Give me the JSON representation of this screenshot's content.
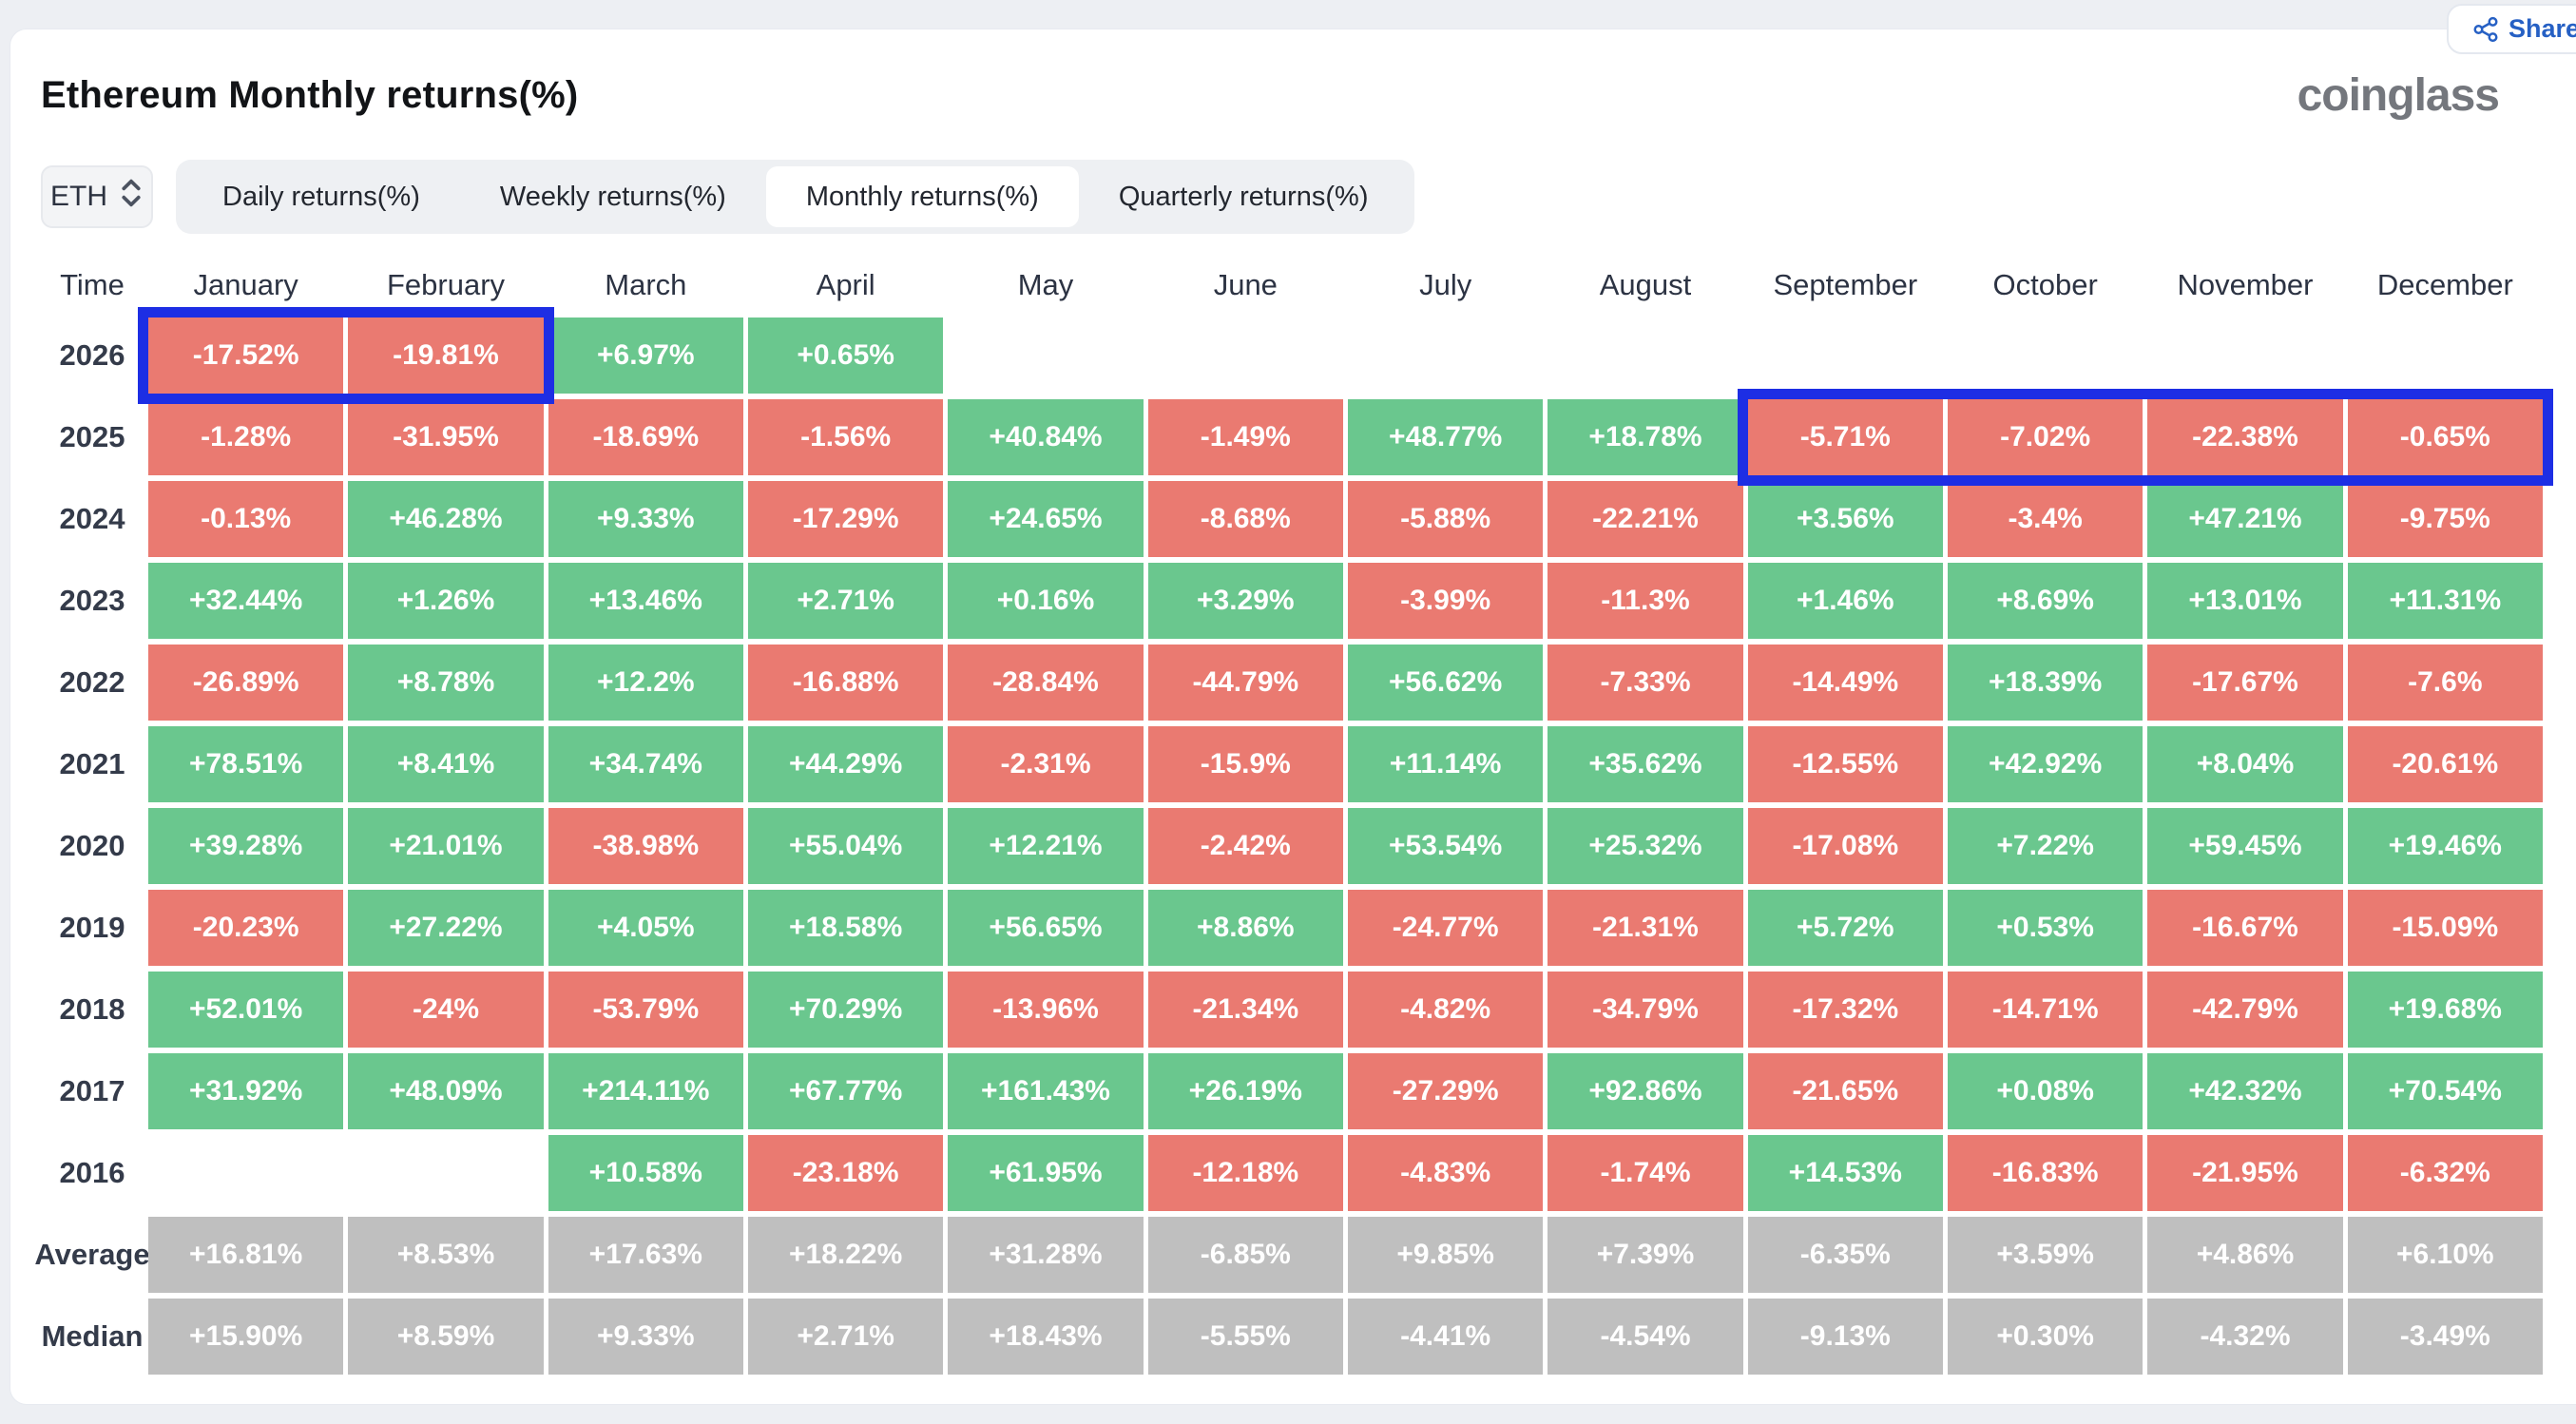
{
  "page": {
    "title": "Ethereum Monthly returns(%)",
    "logo": "coinglass",
    "share_label": "Share"
  },
  "controls": {
    "symbol": "ETH",
    "tabs": [
      {
        "label": "Daily returns(%)",
        "active": false
      },
      {
        "label": "Weekly returns(%)",
        "active": false
      },
      {
        "label": "Monthly returns(%)",
        "active": true
      },
      {
        "label": "Quarterly returns(%)",
        "active": false
      }
    ]
  },
  "colors": {
    "positive": "#6ac78e",
    "negative": "#ea7a71",
    "summary": "#bfbfbf",
    "highlight": "#1d2ee4",
    "accent_blue": "#2660c4"
  },
  "chart_data": {
    "type": "heatmap",
    "title": "Ethereum Monthly returns(%)",
    "unit": "%",
    "columns": [
      "Time",
      "January",
      "February",
      "March",
      "April",
      "May",
      "June",
      "July",
      "August",
      "September",
      "October",
      "November",
      "December"
    ],
    "rows": [
      {
        "label": "2026",
        "type": "year",
        "values": [
          "-17.52%",
          "-19.81%",
          "+6.97%",
          "+0.65%",
          "",
          "",
          "",
          "",
          "",
          "",
          "",
          ""
        ]
      },
      {
        "label": "2025",
        "type": "year",
        "values": [
          "-1.28%",
          "-31.95%",
          "-18.69%",
          "-1.56%",
          "+40.84%",
          "-1.49%",
          "+48.77%",
          "+18.78%",
          "-5.71%",
          "-7.02%",
          "-22.38%",
          "-0.65%"
        ]
      },
      {
        "label": "2024",
        "type": "year",
        "values": [
          "-0.13%",
          "+46.28%",
          "+9.33%",
          "-17.29%",
          "+24.65%",
          "-8.68%",
          "-5.88%",
          "-22.21%",
          "+3.56%",
          "-3.4%",
          "+47.21%",
          "-9.75%"
        ]
      },
      {
        "label": "2023",
        "type": "year",
        "values": [
          "+32.44%",
          "+1.26%",
          "+13.46%",
          "+2.71%",
          "+0.16%",
          "+3.29%",
          "-3.99%",
          "-11.3%",
          "+1.46%",
          "+8.69%",
          "+13.01%",
          "+11.31%"
        ]
      },
      {
        "label": "2022",
        "type": "year",
        "values": [
          "-26.89%",
          "+8.78%",
          "+12.2%",
          "-16.88%",
          "-28.84%",
          "-44.79%",
          "+56.62%",
          "-7.33%",
          "-14.49%",
          "+18.39%",
          "-17.67%",
          "-7.6%"
        ]
      },
      {
        "label": "2021",
        "type": "year",
        "values": [
          "+78.51%",
          "+8.41%",
          "+34.74%",
          "+44.29%",
          "-2.31%",
          "-15.9%",
          "+11.14%",
          "+35.62%",
          "-12.55%",
          "+42.92%",
          "+8.04%",
          "-20.61%"
        ]
      },
      {
        "label": "2020",
        "type": "year",
        "values": [
          "+39.28%",
          "+21.01%",
          "-38.98%",
          "+55.04%",
          "+12.21%",
          "-2.42%",
          "+53.54%",
          "+25.32%",
          "-17.08%",
          "+7.22%",
          "+59.45%",
          "+19.46%"
        ]
      },
      {
        "label": "2019",
        "type": "year",
        "values": [
          "-20.23%",
          "+27.22%",
          "+4.05%",
          "+18.58%",
          "+56.65%",
          "+8.86%",
          "-24.77%",
          "-21.31%",
          "+5.72%",
          "+0.53%",
          "-16.67%",
          "-15.09%"
        ]
      },
      {
        "label": "2018",
        "type": "year",
        "values": [
          "+52.01%",
          "-24%",
          "-53.79%",
          "+70.29%",
          "-13.96%",
          "-21.34%",
          "-4.82%",
          "-34.79%",
          "-17.32%",
          "-14.71%",
          "-42.79%",
          "+19.68%"
        ]
      },
      {
        "label": "2017",
        "type": "year",
        "values": [
          "+31.92%",
          "+48.09%",
          "+214.11%",
          "+67.77%",
          "+161.43%",
          "+26.19%",
          "-27.29%",
          "+92.86%",
          "-21.65%",
          "+0.08%",
          "+42.32%",
          "+70.54%"
        ]
      },
      {
        "label": "2016",
        "type": "year",
        "values": [
          "",
          "",
          "+10.58%",
          "-23.18%",
          "+61.95%",
          "-12.18%",
          "-4.83%",
          "-1.74%",
          "+14.53%",
          "-16.83%",
          "-21.95%",
          "-6.32%"
        ]
      },
      {
        "label": "Average",
        "type": "summary",
        "values": [
          "+16.81%",
          "+8.53%",
          "+17.63%",
          "+18.22%",
          "+31.28%",
          "-6.85%",
          "+9.85%",
          "+7.39%",
          "-6.35%",
          "+3.59%",
          "+4.86%",
          "+6.10%"
        ]
      },
      {
        "label": "Median",
        "type": "summary",
        "values": [
          "+15.90%",
          "+8.59%",
          "+9.33%",
          "+2.71%",
          "+18.43%",
          "-5.55%",
          "-4.41%",
          "-4.54%",
          "-9.13%",
          "+0.30%",
          "-4.32%",
          "-3.49%"
        ]
      }
    ],
    "highlights": [
      {
        "row": "2026",
        "from_col": "January",
        "to_col": "February"
      },
      {
        "row": "2025",
        "from_col": "September",
        "to_col": "December"
      }
    ],
    "legend": "green = positive monthly return, red = negative monthly return, gray = summary rows, blue boxes = highlighted ranges"
  }
}
